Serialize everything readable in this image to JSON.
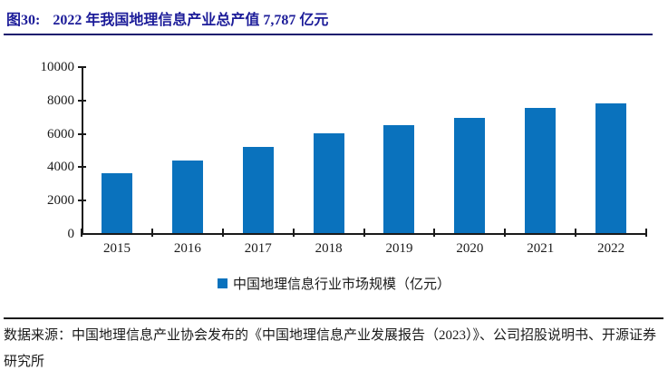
{
  "figure": {
    "label": "图30:",
    "title": "2022 年我国地理信息产业总产值 7,787 亿元"
  },
  "colors": {
    "title_navy": "#1c1c99",
    "bar_blue": "#0a72bd",
    "axis_black": "#1a1a1a"
  },
  "chart_data": {
    "type": "bar",
    "categories": [
      "2015",
      "2016",
      "2017",
      "2018",
      "2019",
      "2020",
      "2021",
      "2022"
    ],
    "values": [
      3600,
      4360,
      5180,
      5957,
      6476,
      6890,
      7524,
      7787
    ],
    "series_name": "中国地理信息行业市场规模（亿元）",
    "title": "2022 年我国地理信息产业总产值 7,787 亿元",
    "xlabel": "",
    "ylabel": "",
    "ylim": [
      0,
      10000
    ],
    "yticks": [
      0,
      2000,
      4000,
      6000,
      8000,
      10000
    ],
    "ytick_labels": [
      "0",
      "2000",
      "4000",
      "6000",
      "8000",
      "10000"
    ],
    "grid": false,
    "legend_position": "bottom",
    "bar_color": "#0a72bd"
  },
  "legend": {
    "label": "中国地理信息行业市场规模（亿元）"
  },
  "source": {
    "text": "数据来源：中国地理信息产业协会发布的《中国地理信息产业发展报告（2023）》、公司招股说明书、开源证券研究所"
  }
}
